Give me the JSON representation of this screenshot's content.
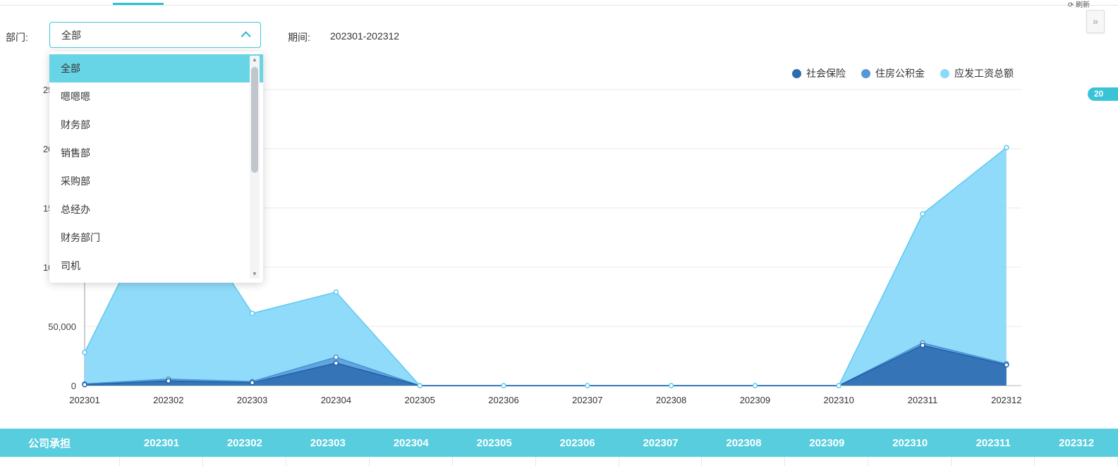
{
  "topbar": {
    "refresh_label": "⟳ 刷新",
    "expand_label": "»"
  },
  "filters": {
    "department_label": "部门:",
    "department_value": "全部",
    "period_label": "期间:",
    "period_value": "202301-202312"
  },
  "dropdown": {
    "items": [
      {
        "label": "全部",
        "selected": true
      },
      {
        "label": "嗯嗯嗯",
        "selected": false
      },
      {
        "label": "财务部",
        "selected": false
      },
      {
        "label": "销售部",
        "selected": false
      },
      {
        "label": "采购部",
        "selected": false
      },
      {
        "label": "总经办",
        "selected": false
      },
      {
        "label": "财务部门",
        "selected": false
      },
      {
        "label": "司机",
        "selected": false
      }
    ]
  },
  "side_badge": "20",
  "chart_data": {
    "type": "area",
    "categories": [
      "202301",
      "202302",
      "202303",
      "202304",
      "202305",
      "202306",
      "202307",
      "202308",
      "202309",
      "202310",
      "202311",
      "202312"
    ],
    "series": [
      {
        "name": "社会保险",
        "color": "#2e6cb0",
        "line_color": "#1f5fa8",
        "fill_opacity": 0.85,
        "zero_markers": false,
        "values": [
          800,
          4000,
          2500,
          19000,
          0,
          0,
          0,
          0,
          0,
          0,
          34000,
          17500
        ]
      },
      {
        "name": "住房公积金",
        "color": "#5598d8",
        "line_color": "#4a90d2",
        "fill_opacity": 0.8,
        "zero_markers": false,
        "values": [
          1500,
          5500,
          3500,
          24000,
          0,
          0,
          0,
          0,
          0,
          0,
          36000,
          18500
        ]
      },
      {
        "name": "应发工资总额",
        "color": "#8ad9f9",
        "line_color": "#5ec9f2",
        "fill_opacity": 0.95,
        "zero_markers": true,
        "values": [
          28000,
          170000,
          61000,
          79000,
          0,
          0,
          0,
          0,
          0,
          0,
          145000,
          201000
        ]
      }
    ],
    "ylim": [
      0,
      250000
    ],
    "ytick_step": 50000,
    "grid": true,
    "legend_position": "top-right"
  },
  "table": {
    "first_header": "公司承担",
    "month_headers": [
      "202301",
      "202302",
      "202303",
      "202304",
      "202305",
      "202306",
      "202307",
      "202308",
      "202309",
      "202310",
      "202311",
      "202312"
    ]
  },
  "colors": {
    "accent": "#35c3d6",
    "table_header_bg": "#57cdde",
    "dropdown_selected_bg": "#68d5e6",
    "tab_underline": "#2cc0d0"
  }
}
